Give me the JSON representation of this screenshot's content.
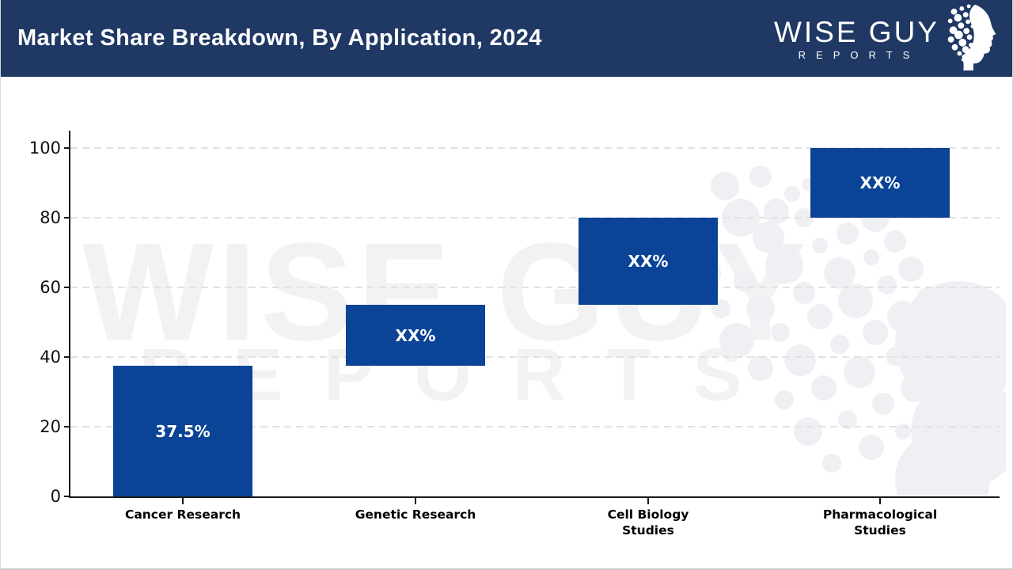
{
  "header": {
    "title": "Market Share Breakdown, By Application, 2024",
    "logo": {
      "line1": "WISE GUY",
      "line2": "REPORTS"
    }
  },
  "watermark": {
    "line1": "WISE GUY",
    "line2": "REPORTS"
  },
  "colors": {
    "header_bg": "#1f3864",
    "bar_fill": "#0b4397",
    "bar_label_text": "#ffffff",
    "gridline": "#e2e2e2",
    "axis": "#1a1a1a",
    "watermark": "#f2f2f4"
  },
  "chart_data": {
    "type": "bar",
    "subtype": "waterfall",
    "title": "Market Share Breakdown, By Application, 2024",
    "xlabel": "",
    "ylabel": "",
    "ylim": [
      0,
      100
    ],
    "yticks": [
      "0",
      "20",
      "40",
      "60",
      "80",
      "100"
    ],
    "ytick_values": [
      0,
      20,
      40,
      60,
      80,
      100
    ],
    "grid": "horizontal-dashed",
    "legend": "none",
    "categories": [
      "Cancer Research",
      "Genetic Research",
      "Cell Biology Studies",
      "Pharmacological Studies"
    ],
    "bars": [
      {
        "category": "Cancer Research",
        "category_lines": [
          "Cancer Research"
        ],
        "start": 0,
        "end": 37.5,
        "label": "37.5%"
      },
      {
        "category": "Genetic Research",
        "category_lines": [
          "Genetic Research"
        ],
        "start": 37.5,
        "end": 55,
        "label": "XX%"
      },
      {
        "category": "Cell Biology Studies",
        "category_lines": [
          "Cell Biology",
          "Studies"
        ],
        "start": 55,
        "end": 80,
        "label": "XX%"
      },
      {
        "category": "Pharmacological Studies",
        "category_lines": [
          "Pharmacological",
          "Studies"
        ],
        "start": 80,
        "end": 100,
        "label": "XX%"
      }
    ]
  }
}
